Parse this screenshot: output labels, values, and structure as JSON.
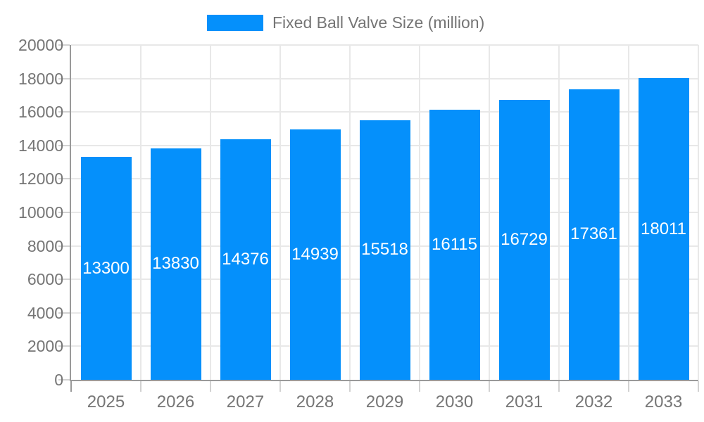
{
  "legend": {
    "label": "Fixed Ball Valve Size (million)"
  },
  "chart_data": {
    "type": "bar",
    "title": "Fixed Ball Valve Size (million)",
    "series_name": "Fixed Ball Valve Size (million)",
    "categories": [
      "2025",
      "2026",
      "2027",
      "2028",
      "2029",
      "2030",
      "2031",
      "2032",
      "2033"
    ],
    "values": [
      13300,
      13830,
      14376,
      14939,
      15518,
      16115,
      16729,
      17361,
      18011
    ],
    "xlabel": "",
    "ylabel": "",
    "ylim": [
      0,
      20000
    ],
    "y_tick_step": 2000,
    "y_tick_labels": [
      "0",
      "2000",
      "4000",
      "6000",
      "8000",
      "10000",
      "12000",
      "14000",
      "16000",
      "18000",
      "20000"
    ],
    "grid": true,
    "legend_position": "top-center",
    "value_labels": "centered-inside-bars",
    "colors": {
      "bar": "#0590fb",
      "value_label": "#ffffff",
      "axis_text": "#757575",
      "axis_line": "#9a9a9a",
      "gridline": "#e8e8e8",
      "tick": "#d2d2d2"
    }
  }
}
